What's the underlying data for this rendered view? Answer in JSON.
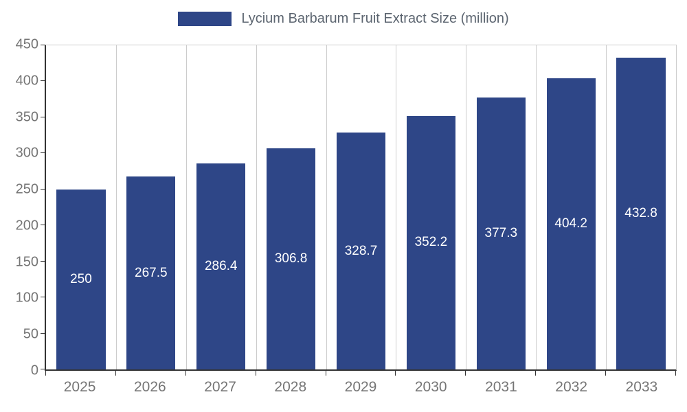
{
  "legend": {
    "label": "Lycium Barbarum Fruit Extract Size (million)"
  },
  "chart_data": {
    "type": "bar",
    "title": "Lycium Barbarum Fruit Extract Size (million)",
    "categories": [
      "2025",
      "2026",
      "2027",
      "2028",
      "2029",
      "2030",
      "2031",
      "2032",
      "2033"
    ],
    "values": [
      250,
      267.5,
      286.4,
      306.8,
      328.7,
      352.2,
      377.3,
      404.2,
      432.8
    ],
    "value_labels": [
      "250",
      "267.5",
      "286.4",
      "306.8",
      "328.7",
      "352.2",
      "377.3",
      "404.2",
      "432.8"
    ],
    "xlabel": "",
    "ylabel": "",
    "ylim": [
      0,
      450
    ],
    "ytick_step": 50,
    "grid": true,
    "legend_position": "top",
    "bar_color": "#2e4687",
    "value_label_color": "#ffffff",
    "axis_label_color": "#757575",
    "axis_line_color": "#333333",
    "gridline_color": "#cccccc"
  }
}
